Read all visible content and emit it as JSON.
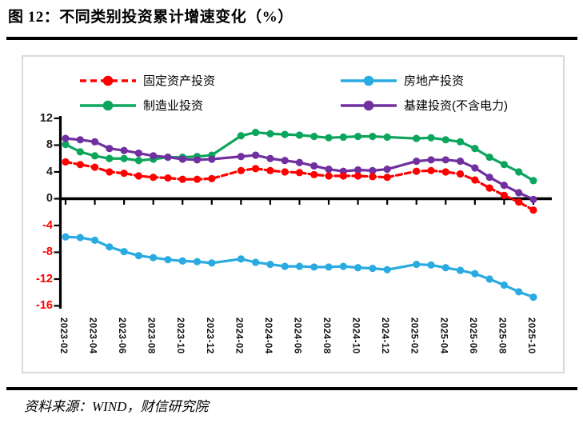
{
  "title": "图 12：不同类别投资累计增速变化（%）",
  "source_note": "资料来源：WIND，财信研究院",
  "colors": {
    "axis": "#000000",
    "negative_tick_labels": "#fe0000",
    "panel_border": "#d9d9d9"
  },
  "chart_data": {
    "type": "line",
    "title": "不同类别投资累计增速变化（%）",
    "unit": "%",
    "grid": false,
    "legend_position": "top",
    "ylim": [
      -16,
      12
    ],
    "yticks": [
      12,
      8,
      4,
      0,
      -4,
      -8,
      -12,
      -16
    ],
    "x": [
      "2023-02",
      "2023-03",
      "2023-04",
      "2023-05",
      "2023-06",
      "2023-07",
      "2023-08",
      "2023-09",
      "2023-10",
      "2023-11",
      "2023-12",
      "2024-02",
      "2024-03",
      "2024-04",
      "2024-05",
      "2024-06",
      "2024-07",
      "2024-08",
      "2024-09",
      "2024-10",
      "2024-11",
      "2024-12",
      "2025-02",
      "2025-03",
      "2025-04",
      "2025-05",
      "2025-06",
      "2025-07",
      "2025-08",
      "2025-09",
      "2025-10"
    ],
    "x_tick_labels": [
      "2023-02",
      "2023-04",
      "2023-06",
      "2023-08",
      "2023-10",
      "2023-12",
      "2024-02",
      "2024-04",
      "2024-06",
      "2024-08",
      "2024-10",
      "2024-12",
      "2025-02",
      "2025-04",
      "2025-06",
      "2025-08",
      "2025-10"
    ],
    "series": [
      {
        "name": "固定资产投资",
        "color": "#fe0000",
        "style": "dashed",
        "values": [
          5.5,
          5.1,
          4.7,
          4.0,
          3.8,
          3.4,
          3.2,
          3.1,
          2.9,
          2.9,
          3.0,
          4.2,
          4.5,
          4.2,
          4.0,
          3.9,
          3.6,
          3.4,
          3.4,
          3.4,
          3.3,
          3.2,
          4.1,
          4.2,
          4.0,
          3.7,
          2.8,
          1.6,
          0.5,
          -0.5,
          -1.7
        ]
      },
      {
        "name": "房地产投资",
        "color": "#29abe2",
        "style": "solid",
        "values": [
          -5.7,
          -5.8,
          -6.2,
          -7.2,
          -7.9,
          -8.5,
          -8.8,
          -9.1,
          -9.3,
          -9.4,
          -9.6,
          -9.0,
          -9.5,
          -9.8,
          -10.1,
          -10.1,
          -10.2,
          -10.2,
          -10.1,
          -10.3,
          -10.4,
          -10.6,
          -9.8,
          -9.9,
          -10.3,
          -10.7,
          -11.2,
          -12.0,
          -12.9,
          -13.9,
          -14.7
        ]
      },
      {
        "name": "制造业投资",
        "color": "#0ba55c",
        "style": "solid",
        "values": [
          8.1,
          7.0,
          6.4,
          6.0,
          6.0,
          5.7,
          5.9,
          6.2,
          6.2,
          6.3,
          6.5,
          9.4,
          9.9,
          9.7,
          9.6,
          9.5,
          9.3,
          9.1,
          9.2,
          9.3,
          9.3,
          9.2,
          9.0,
          9.1,
          8.8,
          8.5,
          7.5,
          6.2,
          5.1,
          4.0,
          2.7
        ]
      },
      {
        "name": "基建投资(不含电力)",
        "color": "#7030a0",
        "style": "solid",
        "values": [
          9.0,
          8.8,
          8.5,
          7.5,
          7.2,
          6.8,
          6.4,
          6.2,
          5.9,
          5.8,
          5.9,
          6.3,
          6.5,
          6.0,
          5.7,
          5.4,
          4.9,
          4.4,
          4.1,
          4.3,
          4.2,
          4.4,
          5.6,
          5.8,
          5.8,
          5.6,
          4.6,
          3.2,
          2.0,
          0.9,
          -0.1
        ]
      }
    ]
  }
}
